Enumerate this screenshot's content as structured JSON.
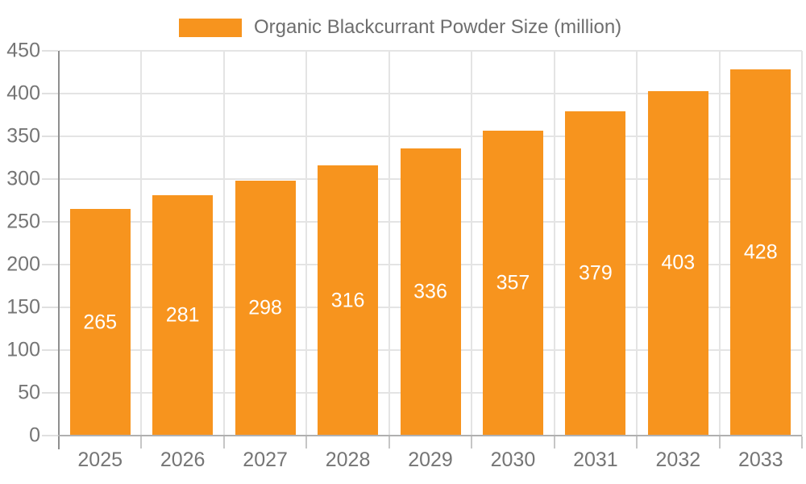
{
  "chart_data": {
    "type": "bar",
    "title": "Organic Blackcurrant Powder Size (million)",
    "categories": [
      "2025",
      "2026",
      "2027",
      "2028",
      "2029",
      "2030",
      "2031",
      "2032",
      "2033"
    ],
    "series": [
      {
        "name": "Organic Blackcurrant Powder Size (million)",
        "values": [
          265,
          281,
          298,
          316,
          336,
          357,
          379,
          403,
          428
        ],
        "color": "#f7941e"
      }
    ],
    "xlabel": "",
    "ylabel": "",
    "ylim": [
      0,
      450
    ],
    "yticks": [
      0,
      50,
      100,
      150,
      200,
      250,
      300,
      350,
      400,
      450
    ],
    "grid": true,
    "legend_position": "top-center",
    "value_labels": {
      "show": true,
      "position": "inside-center",
      "color": "#ffffff"
    }
  },
  "legend": {
    "label": "Organic Blackcurrant Powder Size (million)"
  },
  "colors": {
    "background": "#ffffff",
    "bar": "#f7941e",
    "grid": "#e4e4e4",
    "axis_y_line": "#8f8f8f",
    "axis_x_line": "#b0b0b0",
    "y_tick_mark": "#e0e0e0",
    "x_tick_mark": "#c6c6c6",
    "axis_text": "#757575",
    "legend_text": "#6e6e6e",
    "value_text": "#ffffff"
  }
}
